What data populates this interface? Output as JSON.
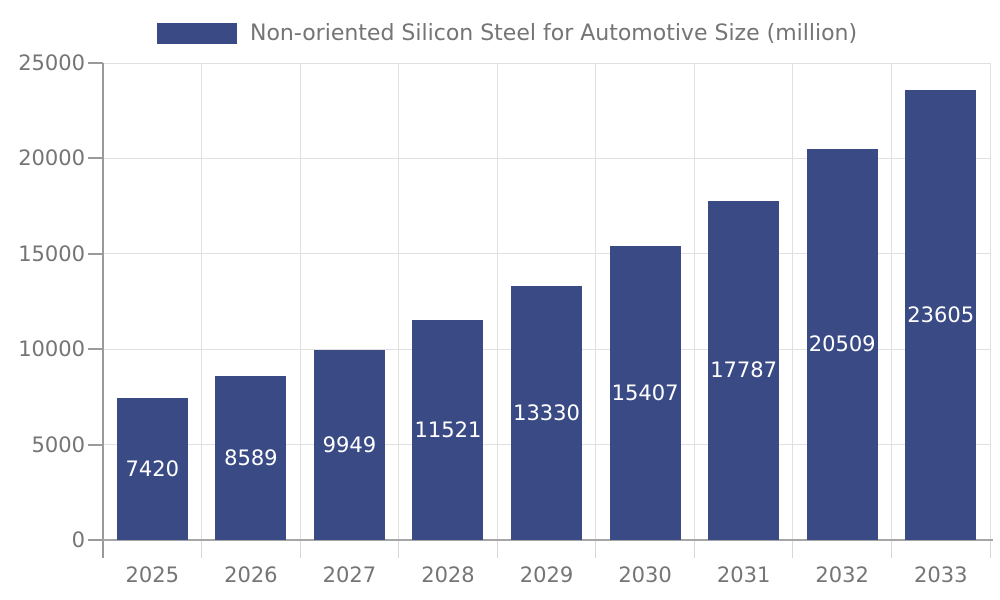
{
  "chart_data": {
    "type": "bar",
    "title": "",
    "legend_position": "top",
    "categories": [
      "2025",
      "2026",
      "2027",
      "2028",
      "2029",
      "2030",
      "2031",
      "2032",
      "2033"
    ],
    "series": [
      {
        "name": "Non-oriented Silicon Steel for Automotive Size (million)",
        "values": [
          7420,
          8589,
          9949,
          11521,
          13330,
          15407,
          17787,
          20509,
          23605
        ],
        "color": "#394a85"
      }
    ],
    "xlabel": "",
    "ylabel": "",
    "ylim": [
      0,
      25000
    ],
    "yticks": [
      0,
      5000,
      10000,
      15000,
      20000,
      25000
    ],
    "grid": true,
    "value_labels": "inside-center",
    "value_label_color": "#ffffff",
    "axis_text_color": "#757575",
    "grid_color": "#e0e0e0",
    "axis_line_color": "#9a9a9a"
  }
}
